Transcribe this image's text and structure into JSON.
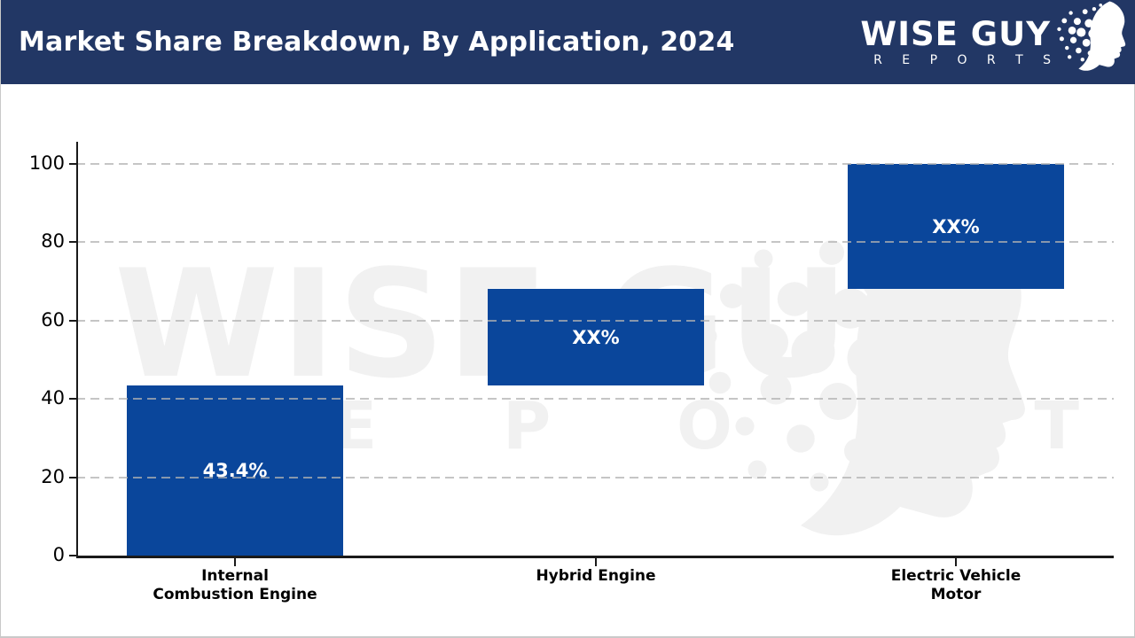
{
  "header": {
    "title": "Market Share Breakdown, By Application, 2024",
    "bg_color": "#223765"
  },
  "logo": {
    "line1": "WISE GUY",
    "line2": "R E P O R T S"
  },
  "watermark": {
    "line1": "WISE GUY",
    "line2": "R E P O R T S"
  },
  "chart_data": {
    "type": "bar",
    "variant": "floating-waterfall",
    "title": "Market Share Breakdown, By Application, 2024",
    "categories": [
      "Internal\nCombustion Engine",
      "Hybrid Engine",
      "Electric Vehicle\nMotor"
    ],
    "series": [
      {
        "name": "Market Share (%)",
        "ranges": [
          [
            0,
            43.4
          ],
          [
            43.4,
            68
          ],
          [
            68,
            100
          ]
        ],
        "labels": [
          "43.4%",
          "XX%",
          "XX%"
        ]
      }
    ],
    "bar_color": "#0a469b",
    "label_color": "#ffffff",
    "ylim": [
      0,
      100
    ],
    "yticks": [
      0,
      20,
      40,
      60,
      80,
      100
    ],
    "grid": "horizontal-dashed",
    "legend": "none"
  }
}
